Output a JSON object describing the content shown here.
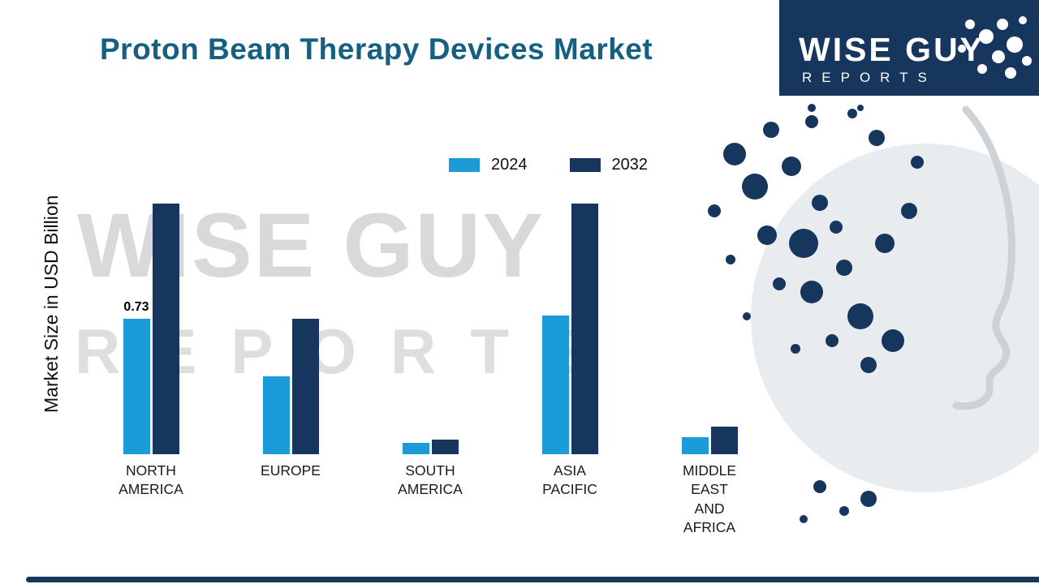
{
  "title": "Proton Beam Therapy Devices Market",
  "y_axis_label": "Market Size in USD Billion",
  "watermark": {
    "line1": "WISE GUY",
    "line2": "REPORTS"
  },
  "logo": {
    "name_line": "WISE GUY",
    "sub_line": "REPORTS"
  },
  "colors": {
    "title": "#156082",
    "series_2024": "#1b9bd8",
    "series_2032": "#17365d",
    "footer_bar": "#17365d",
    "watermark": "#d9d9d9"
  },
  "chart_data": {
    "type": "bar",
    "title": "Proton Beam Therapy Devices Market",
    "xlabel": "",
    "ylabel": "Market Size in USD Billion",
    "categories": [
      "NORTH AMERICA",
      "EUROPE",
      "SOUTH AMERICA",
      "ASIA PACIFIC",
      "MIDDLE EAST AND AFRICA"
    ],
    "series": [
      {
        "name": "2024",
        "color": "#1b9bd8",
        "values": [
          0.73,
          0.42,
          0.06,
          0.75,
          0.09
        ]
      },
      {
        "name": "2032",
        "color": "#17365d",
        "values": [
          1.35,
          0.73,
          0.08,
          1.35,
          0.15
        ]
      }
    ],
    "annotations": [
      {
        "series": "2024",
        "category": "NORTH AMERICA",
        "text": "0.73"
      }
    ],
    "ylim": [
      0,
      1.4
    ],
    "grid": false,
    "value_axis_visible": false,
    "legend_position": "top"
  }
}
